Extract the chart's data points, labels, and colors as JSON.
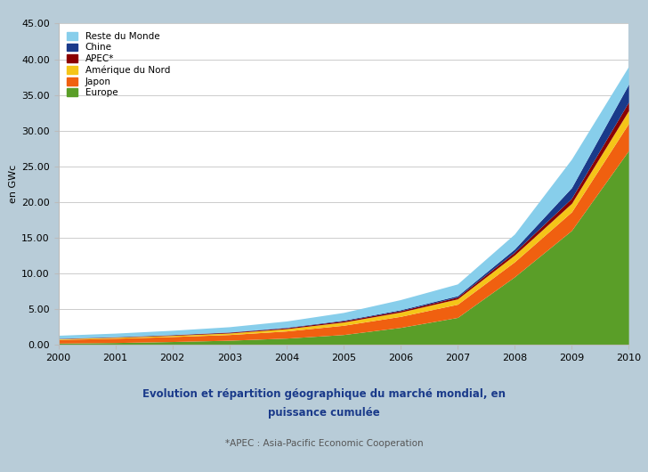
{
  "years": [
    2000,
    2001,
    2002,
    2003,
    2004,
    2005,
    2006,
    2007,
    2008,
    2009,
    2010
  ],
  "europe": [
    0.2,
    0.28,
    0.42,
    0.6,
    0.9,
    1.4,
    2.4,
    3.8,
    9.5,
    16.0,
    27.2
  ],
  "japon": [
    0.5,
    0.6,
    0.7,
    0.8,
    1.0,
    1.3,
    1.55,
    1.85,
    2.1,
    2.6,
    3.8
  ],
  "amerique_nord": [
    0.1,
    0.13,
    0.16,
    0.22,
    0.32,
    0.45,
    0.6,
    0.75,
    0.95,
    1.2,
    1.8
  ],
  "apec": [
    0.05,
    0.06,
    0.08,
    0.1,
    0.13,
    0.17,
    0.2,
    0.25,
    0.4,
    0.7,
    1.2
  ],
  "chine": [
    0.02,
    0.03,
    0.04,
    0.05,
    0.07,
    0.1,
    0.13,
    0.2,
    0.45,
    1.5,
    2.5
  ],
  "reste_du_monde": [
    0.43,
    0.5,
    0.6,
    0.73,
    0.88,
    1.08,
    1.42,
    1.65,
    2.1,
    4.0,
    2.5
  ],
  "colors": {
    "europe": "#5a9e28",
    "japon": "#f06010",
    "amerique_nord": "#f5c518",
    "apec": "#8b0000",
    "chine": "#1a3a8a",
    "reste_du_monde": "#87ceeb"
  },
  "labels": {
    "europe": "Europe",
    "japon": "Japon",
    "amerique_nord": "Amérique du Nord",
    "apec": "APEC*",
    "chine": "Chine",
    "reste_du_monde": "Reste du Monde"
  },
  "ylabel": "en GWc",
  "ylim": [
    0,
    45
  ],
  "yticks": [
    0.0,
    5.0,
    10.0,
    15.0,
    20.0,
    25.0,
    30.0,
    35.0,
    40.0,
    45.0
  ],
  "title_line1": "Evolution et répartition géographique du marché mondial, en",
  "title_line2": "puissance cumulée",
  "subtitle": "*APEC : Asia-Pacific Economic Cooperation",
  "background_color": "#b8ccd8",
  "plot_background": "#ffffff",
  "grid_color": "#cccccc"
}
